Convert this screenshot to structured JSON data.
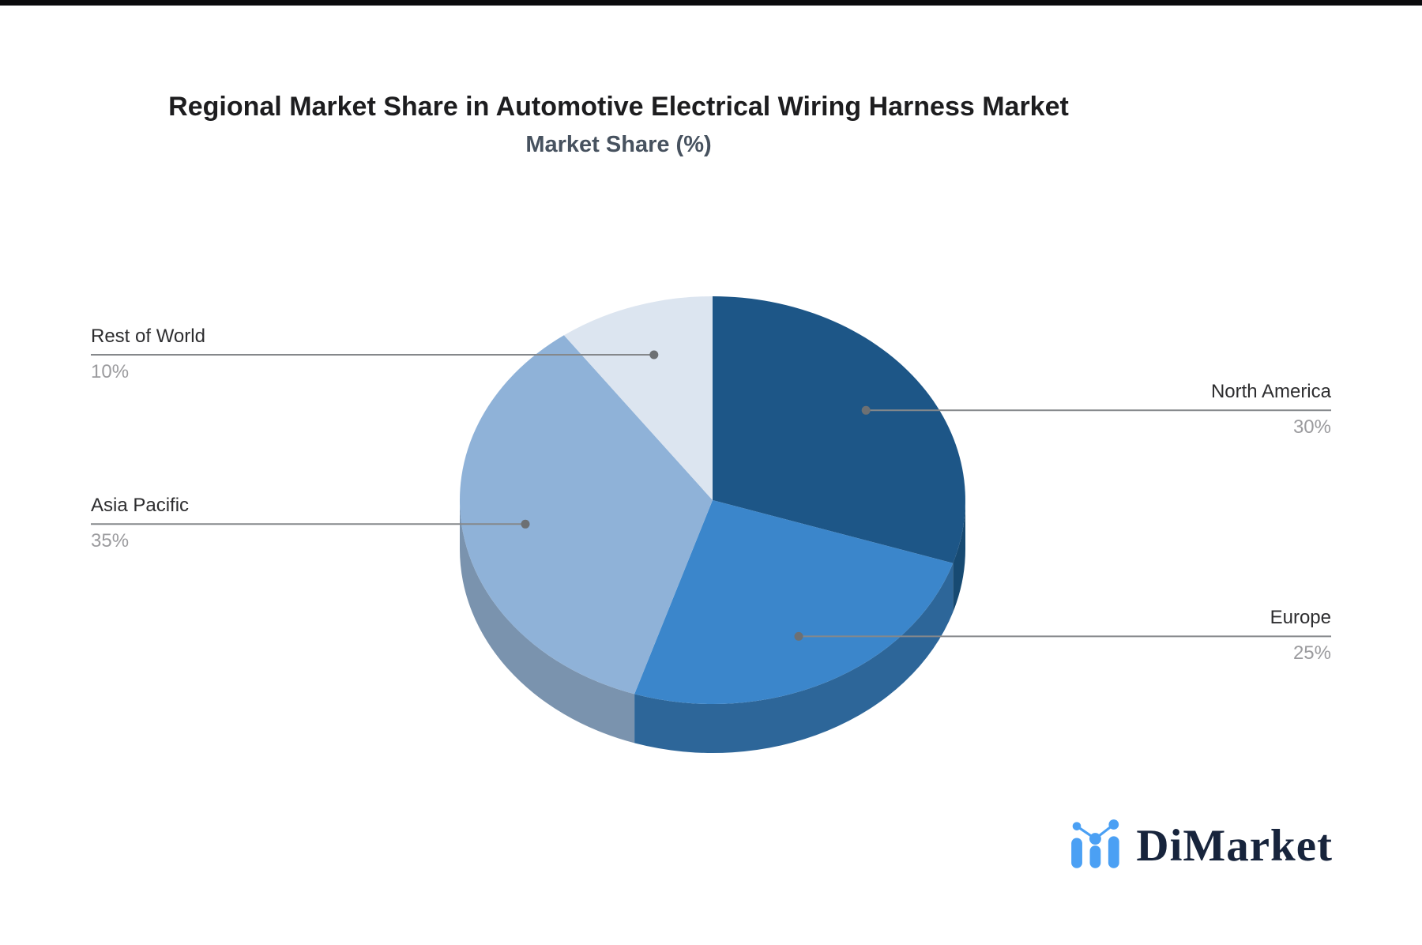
{
  "top_bar_color": "#0b0b0d",
  "chart_data": {
    "type": "pie",
    "title": "Regional Market Share in Automotive Electrical Wiring Harness Market",
    "subtitle": "Market Share (%)",
    "unit": "%",
    "effect": "3d",
    "start_angle_deg": 0,
    "direction": "clockwise",
    "legend": "none (leader-line labels)",
    "categories": [
      "North America",
      "Europe",
      "Asia Pacific",
      "Rest of World"
    ],
    "values": [
      30,
      25,
      35,
      10
    ],
    "slices": [
      {
        "label": "North America",
        "value": 30,
        "pct_label": "30%",
        "color": "#1d5687",
        "side_color": "#174a72",
        "label_side": "right"
      },
      {
        "label": "Europe",
        "value": 25,
        "pct_label": "25%",
        "color": "#3b86cb",
        "side_color": "#2d6699",
        "label_side": "right"
      },
      {
        "label": "Asia Pacific",
        "value": 35,
        "pct_label": "35%",
        "color": "#8fb2d8",
        "side_color": "#7a93ae",
        "label_side": "left"
      },
      {
        "label": "Rest of World",
        "value": 10,
        "pct_label": "10%",
        "color": "#dce5f0",
        "side_color": "#bac7d6",
        "label_side": "left"
      }
    ],
    "leader_line_color": "#85888b",
    "leader_dot_color": "#6d7073"
  },
  "logo": {
    "text": "DiMarket",
    "icon": "bar-line-chart-icon",
    "icon_color": "#4ba0f4",
    "text_color": "#17243c"
  }
}
